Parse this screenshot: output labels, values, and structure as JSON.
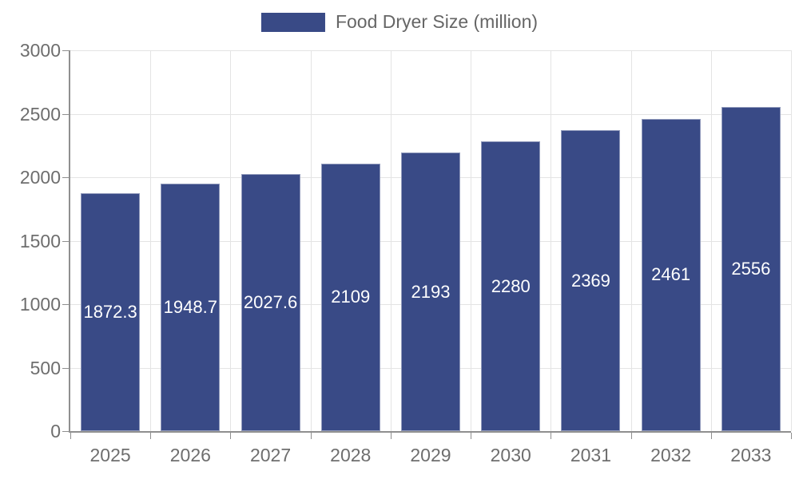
{
  "legend": {
    "label": "Food Dryer Size (million)"
  },
  "chart_data": {
    "type": "bar",
    "title": "Food Dryer Size (million)",
    "series_name": "Food Dryer Size (million)",
    "categories": [
      "2025",
      "2026",
      "2027",
      "2028",
      "2029",
      "2030",
      "2031",
      "2032",
      "2033"
    ],
    "values": [
      1872.3,
      1948.7,
      2027.6,
      2109,
      2193,
      2280,
      2369,
      2461,
      2556
    ],
    "value_labels": [
      "1872.3",
      "1948.7",
      "2027.6",
      "2109",
      "2193",
      "2280",
      "2369",
      "2461",
      "2556"
    ],
    "xlabel": "",
    "ylabel": "",
    "ylim": [
      0,
      3000
    ],
    "y_ticks": [
      0,
      500,
      1000,
      1500,
      2000,
      2500,
      3000
    ],
    "grid": true,
    "legend_position": "top-center",
    "value_label_position": "inside-center",
    "colors": {
      "bar": "#394A86",
      "bar_label": "#FFFFFF",
      "axis_line": "#8F8F8F",
      "grid_line": "#E4E4E4",
      "tick_text": "#6E6E6E",
      "legend_text": "#666666",
      "background": "#FFFFFF"
    }
  }
}
